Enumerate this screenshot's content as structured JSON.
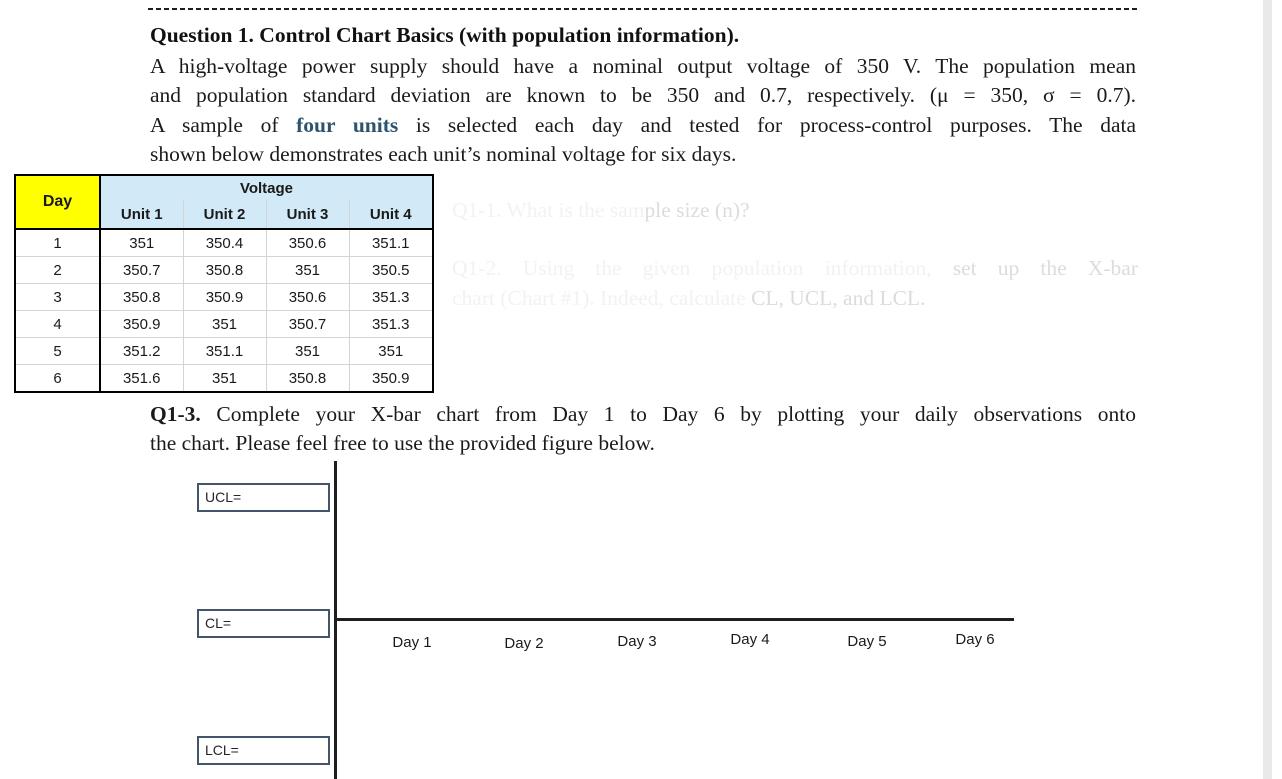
{
  "document": {
    "heading": "Question 1. Control Chart Basics (with population information).",
    "intro": {
      "line1": "A high-voltage power supply should have a nominal output voltage of 350 V. The population mean",
      "line2": "and population standard deviation are known to be 350 and 0.7, respectively. (μ = 350, σ = 0.7).",
      "line3_pre": "A sample of ",
      "line3_highlight": "four units",
      "line3_post": " is selected each day and tested for process-control purposes. The data",
      "line4": "shown below demonstrates each unit’s nominal voltage for six days."
    },
    "q13": {
      "label": "Q1-3.",
      "line1_rest": " Complete your X-bar chart from Day 1 to Day 6 by plotting your daily observations onto",
      "line2": "the chart. Please feel free to use the provided figure below."
    }
  },
  "ghost": {
    "q11_faint": "Q1-1. What is the sam",
    "q11_clear": "ple size (n)?",
    "q12_line1_faint": "Q1-2. Using the given population information, ",
    "q12_line1_clear": "set up the X-bar",
    "q12_line2_faint": "chart (Chart #1). Indeed, calculate ",
    "q12_line2_clear": "CL, UCL, and LCL."
  },
  "table": {
    "corner_header": "Day",
    "group_header": "Voltage",
    "unit_headers": [
      "Unit 1",
      "Unit 2",
      "Unit 3",
      "Unit 4"
    ],
    "rows": [
      {
        "day": "1",
        "values": [
          "351",
          "350.4",
          "350.6",
          "351.1"
        ]
      },
      {
        "day": "2",
        "values": [
          "350.7",
          "350.8",
          "351",
          "350.5"
        ]
      },
      {
        "day": "3",
        "values": [
          "350.8",
          "350.9",
          "350.6",
          "351.3"
        ]
      },
      {
        "day": "4",
        "values": [
          "350.9",
          "351",
          "350.7",
          "351.3"
        ]
      },
      {
        "day": "5",
        "values": [
          "351.2",
          "351.1",
          "351",
          "351"
        ]
      },
      {
        "day": "6",
        "values": [
          "351.6",
          "351",
          "350.8",
          "350.9"
        ]
      }
    ]
  },
  "chart": {
    "ucl_label": "UCL=",
    "cl_label": "CL=",
    "lcl_label": "LCL=",
    "day_labels": [
      "Day 1",
      "Day 2",
      "Day 3",
      "Day 4",
      "Day 5",
      "Day 6"
    ]
  },
  "colors": {
    "highlight_text": "#2e536f",
    "day_header_bg": "#ffff00",
    "voltage_header_bg": "#d2e9f7",
    "limit_box_border": "#44546a",
    "axis_line": "#1f1f1f",
    "ghost_faint": "#f2f2f2",
    "ghost_clear": "#dcdcdc"
  }
}
